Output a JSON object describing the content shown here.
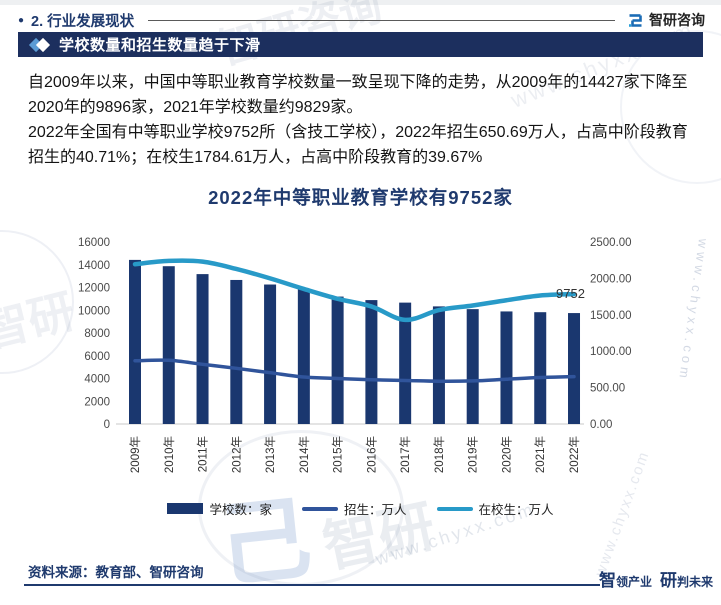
{
  "header": {
    "section": "2. 行业发展现状",
    "brand": "智研咨询"
  },
  "banner": {
    "title": "学校数量和招生数量趋于下滑"
  },
  "body": {
    "para1": "自2009年以来，中国中等职业教育学校数量一致呈现下降的走势，从2009年的14427家下降至2020年的9896家，2021年学校数量约9829家。",
    "para2": "2022年全国有中等职业学校9752所（含技工学校），2022年招生650.69万人，占高中阶段教育招生的40.71%；在校生1784.61万人，占高中阶段教育的39.67%"
  },
  "chart_data": {
    "type": "bar",
    "subtype": "combo-bar-line",
    "title": "2022年中等职业教育学校有9752家",
    "categories": [
      "2009年",
      "2010年",
      "2011年",
      "2012年",
      "2013年",
      "2014年",
      "2015年",
      "2016年",
      "2017年",
      "2018年",
      "2019年",
      "2020年",
      "2021年",
      "2022年"
    ],
    "series": [
      {
        "name": "学校数：家",
        "type": "bar",
        "axis": "left",
        "color": "#1a376f",
        "values": [
          14427,
          13872,
          13177,
          12663,
          12262,
          11878,
          11202,
          10893,
          10671,
          10340,
          10098,
          9896,
          9829,
          9752
        ]
      },
      {
        "name": "招生：万人",
        "type": "line",
        "axis": "right",
        "color": "#30549b",
        "values": [
          868.52,
          875,
          820,
          765,
          705,
          645,
          625,
          608,
          598,
          588,
          592,
          615,
          638,
          650.69
        ]
      },
      {
        "name": "在校生：万人",
        "type": "line",
        "axis": "right",
        "color": "#289ac8",
        "values": [
          2195,
          2240,
          2230,
          2130,
          2000,
          1855,
          1720,
          1615,
          1430,
          1565,
          1628,
          1700,
          1765,
          1784.61
        ]
      }
    ],
    "left_axis": {
      "min": 0,
      "max": 16000,
      "ticks": [
        "0",
        "2000",
        "4000",
        "6000",
        "8000",
        "10000",
        "12000",
        "14000",
        "16000"
      ]
    },
    "right_axis": {
      "min": 0,
      "max": 2500,
      "ticks": [
        "0.00",
        "500.00",
        "1000.00",
        "1500.00",
        "2000.00",
        "2500.00"
      ]
    },
    "annotation": {
      "text": "9752",
      "series": "在校生：万人",
      "category": "2022年"
    },
    "legend_position": "bottom",
    "grid": false
  },
  "footer": {
    "source": "资料来源：教育部、智研咨询",
    "slogan": {
      "big1": "智",
      "small1": "领产业",
      "big2": "研",
      "small2": "判未来"
    }
  },
  "watermarks": {
    "brand": "智研咨询",
    "brand_short": "智研",
    "glyph": "己",
    "url": "www.chyxx.com"
  }
}
